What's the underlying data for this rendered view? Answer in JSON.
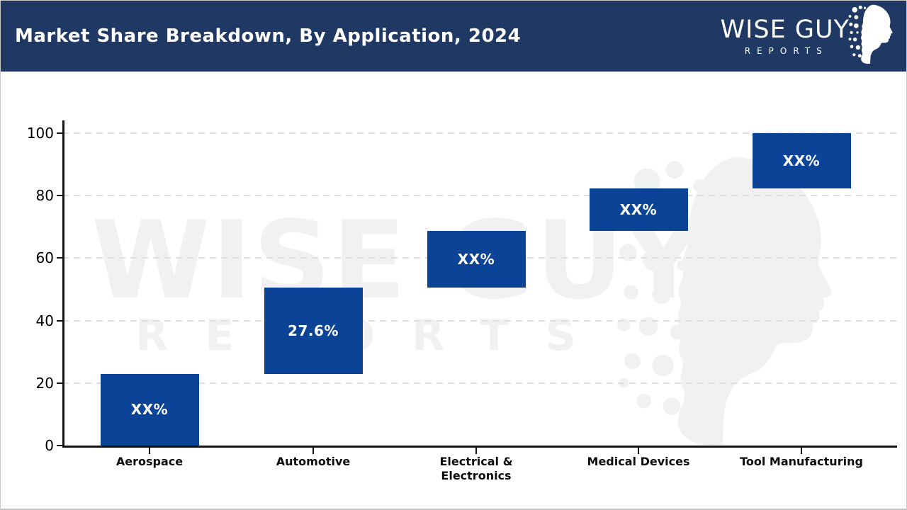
{
  "header": {
    "title": "Market Share Breakdown, By Application, 2024",
    "logo": {
      "line1": "WISE GUY",
      "line2": "REPORTS"
    }
  },
  "watermark": {
    "line1": "WISE GUY",
    "line2": "REPORTS"
  },
  "colors": {
    "header_bg": "#1f3864",
    "bar": "#0b4397",
    "bar_label": "#ffffff",
    "axis": "#141414",
    "gridline": "#dedede",
    "watermark": "#f1f1f4"
  },
  "chart_data": {
    "type": "bar",
    "subtype": "waterfall-stacked-progression",
    "title": "Market Share Breakdown, By Application, 2024",
    "categories": [
      "Aerospace",
      "Automotive",
      "Electrical & Electronics",
      "Medical Devices",
      "Tool Manufacturing"
    ],
    "values": [
      23,
      27.6,
      18.1,
      13.6,
      17.7
    ],
    "starts": [
      0,
      23,
      50.6,
      68.7,
      82.3
    ],
    "bar_labels": [
      "XX%",
      "27.6%",
      "XX%",
      "XX%",
      "XX%"
    ],
    "xlabel": "",
    "ylabel": "",
    "ylim": [
      0,
      100
    ],
    "yticks": [
      "0",
      "20",
      "40",
      "60",
      "80",
      "100"
    ],
    "ytick_values": [
      0,
      20,
      40,
      60,
      80,
      100
    ],
    "grid": "horizontal-dashed",
    "legend": "none"
  }
}
